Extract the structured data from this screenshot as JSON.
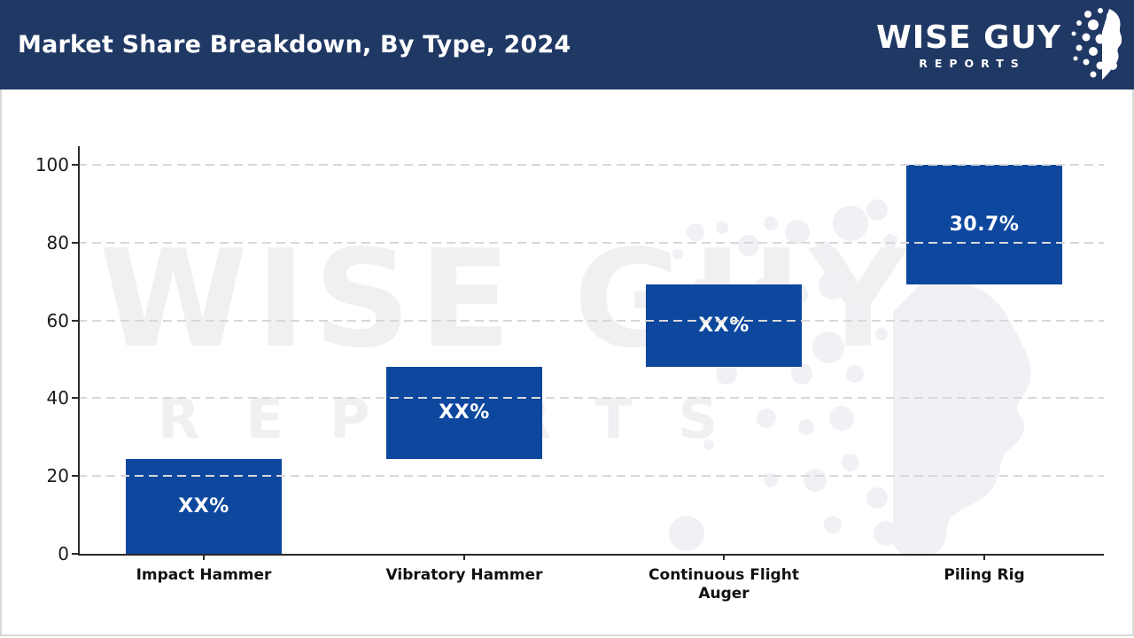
{
  "header": {
    "title": "Market Share Breakdown, By Type, 2024",
    "logo": {
      "name": "WISE GUY",
      "sub": "REPORTS",
      "face_icon": "dotted-face-profile"
    }
  },
  "watermark": {
    "line1": "WISE GUY",
    "line2": "REPORTS",
    "face_icon": "dotted-face-profile"
  },
  "colors": {
    "header_bg": "#203864",
    "bar_fill": "#0d479e",
    "bar_label_text": "#ffffff",
    "grid_line": "#d8d8d8",
    "axis_line": "#2b2b2b",
    "watermark": "#f0f0f3",
    "frame_border": "#d9d9d9"
  },
  "chart_data": {
    "type": "bar",
    "subtype": "floating-waterfall",
    "title": "Market Share Breakdown, By Type, 2024",
    "categories": [
      "Impact Hammer",
      "Vibratory Hammer",
      "Continuous Flight Auger",
      "Piling Rig"
    ],
    "segments": [
      {
        "category": "Impact Hammer",
        "start": 0,
        "end": 24.4,
        "label": "XX%"
      },
      {
        "category": "Vibratory Hammer",
        "start": 24.4,
        "end": 48.1,
        "label": "XX%"
      },
      {
        "category": "Continuous Flight Auger",
        "start": 48.1,
        "end": 69.3,
        "label": "XX%"
      },
      {
        "category": "Piling Rig",
        "start": 69.3,
        "end": 100,
        "label": "30.7%"
      }
    ],
    "yticks": [
      0,
      20,
      40,
      60,
      80,
      100
    ],
    "ylim": [
      0,
      100
    ],
    "xlabel": "",
    "ylabel": "",
    "grid": "horizontal-dashed, drawn above bars",
    "legend": "none"
  }
}
